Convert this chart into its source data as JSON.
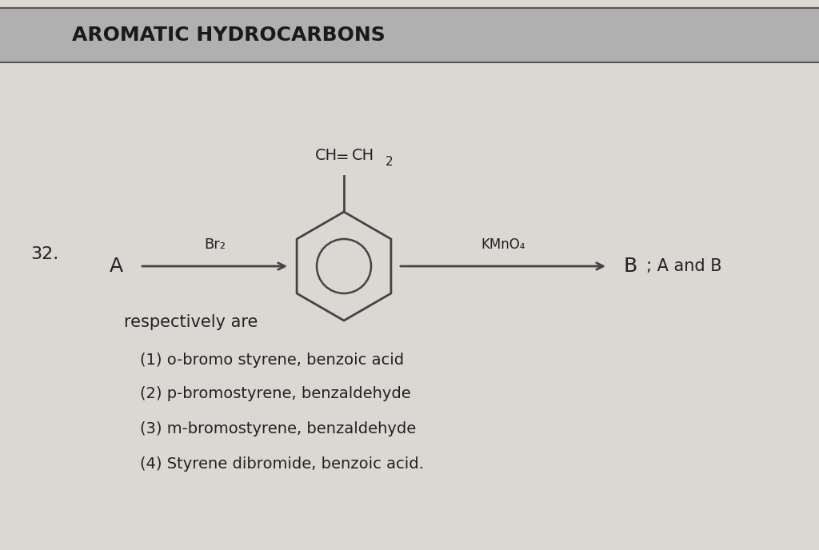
{
  "title": "AROMATIC HYDROCARBONS",
  "title_bg_color": "#b0b0b0",
  "title_text_color": "#1a1a1a",
  "bg_color": "#e8e4e0",
  "page_color": "#dbd7d2",
  "question_number": "32.",
  "reagent_left": "Br₂",
  "reagent_right": "KMnO₄",
  "label_A": "A",
  "label_B": "B",
  "semicolon_text": "; A and B",
  "respectively_text": "respectively are",
  "options": [
    "(1) o-bromo styrene, benzoic acid",
    "(2) p-bromostyrene, benzaldehyde",
    "(3) m-bromostyrene, benzaldehyde",
    "(4) Styrene dibromide, benzoic acid."
  ],
  "option_fontsize": 14,
  "body_fontsize": 15,
  "title_fontsize": 18,
  "line_color": "#444444",
  "text_color": "#222222"
}
